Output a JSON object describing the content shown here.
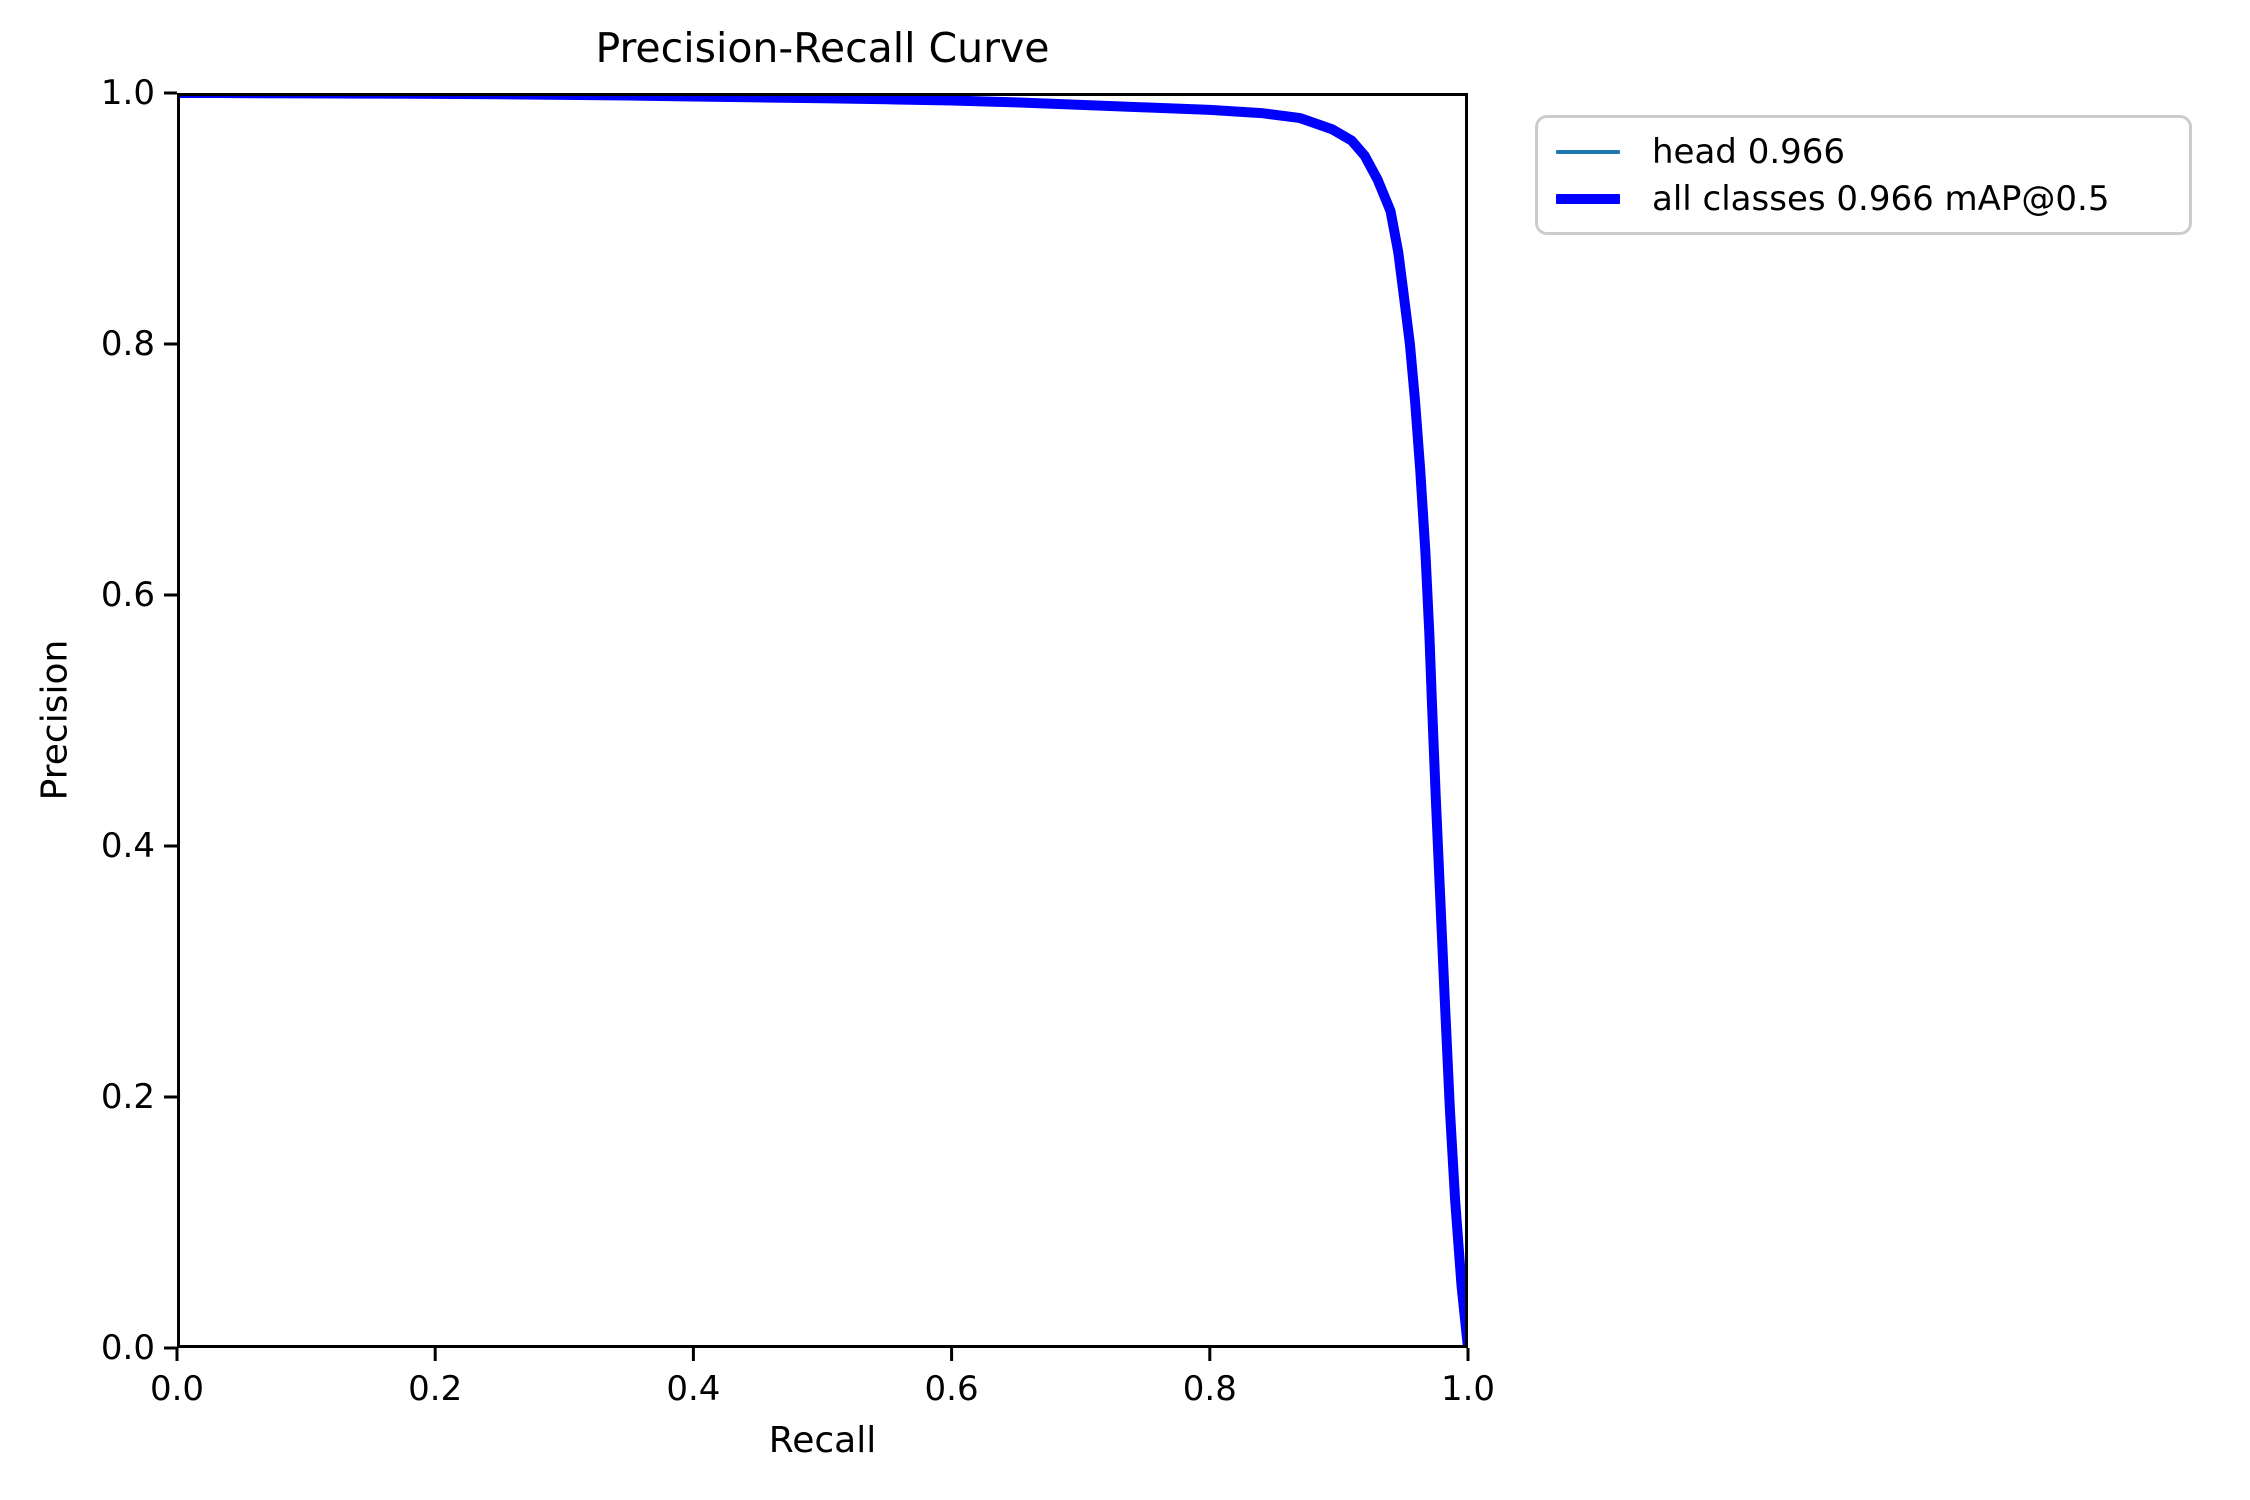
{
  "figure": {
    "background_color": "#ffffff",
    "axes_color": "#000000"
  },
  "chart_data": {
    "type": "line",
    "title": "Precision-Recall Curve",
    "xlabel": "Recall",
    "ylabel": "Precision",
    "xlim": [
      0.0,
      1.0
    ],
    "ylim": [
      0.0,
      1.0
    ],
    "grid": false,
    "legend_position": "outside-upper-right",
    "x_ticks": [
      {
        "value": 0.0,
        "label": "0.0"
      },
      {
        "value": 0.2,
        "label": "0.2"
      },
      {
        "value": 0.4,
        "label": "0.4"
      },
      {
        "value": 0.6,
        "label": "0.6"
      },
      {
        "value": 0.8,
        "label": "0.8"
      },
      {
        "value": 1.0,
        "label": "1.0"
      }
    ],
    "y_ticks": [
      {
        "value": 0.0,
        "label": "0.0"
      },
      {
        "value": 0.2,
        "label": "0.2"
      },
      {
        "value": 0.4,
        "label": "0.4"
      },
      {
        "value": 0.6,
        "label": "0.6"
      },
      {
        "value": 0.8,
        "label": "0.8"
      },
      {
        "value": 1.0,
        "label": "1.0"
      }
    ],
    "series": [
      {
        "name": "head",
        "label": "head 0.966",
        "color": "#1f77b4",
        "line": "thin",
        "points": [
          [
            0.0,
            1.0
          ],
          [
            0.03,
            1.0
          ],
          [
            0.06,
            0.9998
          ],
          [
            0.1,
            0.9997
          ],
          [
            0.15,
            0.9995
          ],
          [
            0.2,
            0.9993
          ],
          [
            0.25,
            0.999
          ],
          [
            0.3,
            0.9985
          ],
          [
            0.35,
            0.998
          ],
          [
            0.4,
            0.9972
          ],
          [
            0.45,
            0.9965
          ],
          [
            0.5,
            0.9958
          ],
          [
            0.55,
            0.995
          ],
          [
            0.6,
            0.994
          ],
          [
            0.65,
            0.9925
          ],
          [
            0.7,
            0.9905
          ],
          [
            0.75,
            0.9885
          ],
          [
            0.8,
            0.9865
          ],
          [
            0.84,
            0.984
          ],
          [
            0.87,
            0.98
          ],
          [
            0.895,
            0.971
          ],
          [
            0.91,
            0.962
          ],
          [
            0.92,
            0.95
          ],
          [
            0.93,
            0.931
          ],
          [
            0.94,
            0.906
          ],
          [
            0.946,
            0.873
          ],
          [
            0.951,
            0.833
          ],
          [
            0.955,
            0.8
          ],
          [
            0.959,
            0.754
          ],
          [
            0.963,
            0.7
          ],
          [
            0.967,
            0.634
          ],
          [
            0.97,
            0.57
          ],
          [
            0.972,
            0.515
          ],
          [
            0.975,
            0.44
          ],
          [
            0.978,
            0.37
          ],
          [
            0.982,
            0.277
          ],
          [
            0.986,
            0.19
          ],
          [
            0.99,
            0.118
          ],
          [
            0.995,
            0.05
          ],
          [
            1.0,
            0.0
          ]
        ]
      },
      {
        "name": "all classes",
        "label": "all classes 0.966 mAP@0.5",
        "color": "#0000ff",
        "line": "thick",
        "points": [
          [
            0.0,
            1.0
          ],
          [
            0.03,
            1.0
          ],
          [
            0.06,
            0.9998
          ],
          [
            0.1,
            0.9997
          ],
          [
            0.15,
            0.9995
          ],
          [
            0.2,
            0.9993
          ],
          [
            0.25,
            0.999
          ],
          [
            0.3,
            0.9985
          ],
          [
            0.35,
            0.998
          ],
          [
            0.4,
            0.9972
          ],
          [
            0.45,
            0.9965
          ],
          [
            0.5,
            0.9958
          ],
          [
            0.55,
            0.995
          ],
          [
            0.6,
            0.994
          ],
          [
            0.65,
            0.9925
          ],
          [
            0.7,
            0.9905
          ],
          [
            0.75,
            0.9885
          ],
          [
            0.8,
            0.9865
          ],
          [
            0.84,
            0.984
          ],
          [
            0.87,
            0.98
          ],
          [
            0.895,
            0.971
          ],
          [
            0.91,
            0.962
          ],
          [
            0.92,
            0.95
          ],
          [
            0.93,
            0.931
          ],
          [
            0.94,
            0.906
          ],
          [
            0.946,
            0.873
          ],
          [
            0.951,
            0.833
          ],
          [
            0.955,
            0.8
          ],
          [
            0.959,
            0.754
          ],
          [
            0.963,
            0.7
          ],
          [
            0.967,
            0.634
          ],
          [
            0.97,
            0.57
          ],
          [
            0.972,
            0.515
          ],
          [
            0.975,
            0.44
          ],
          [
            0.978,
            0.37
          ],
          [
            0.982,
            0.277
          ],
          [
            0.986,
            0.19
          ],
          [
            0.99,
            0.118
          ],
          [
            0.995,
            0.05
          ],
          [
            1.0,
            0.0
          ]
        ]
      }
    ]
  }
}
